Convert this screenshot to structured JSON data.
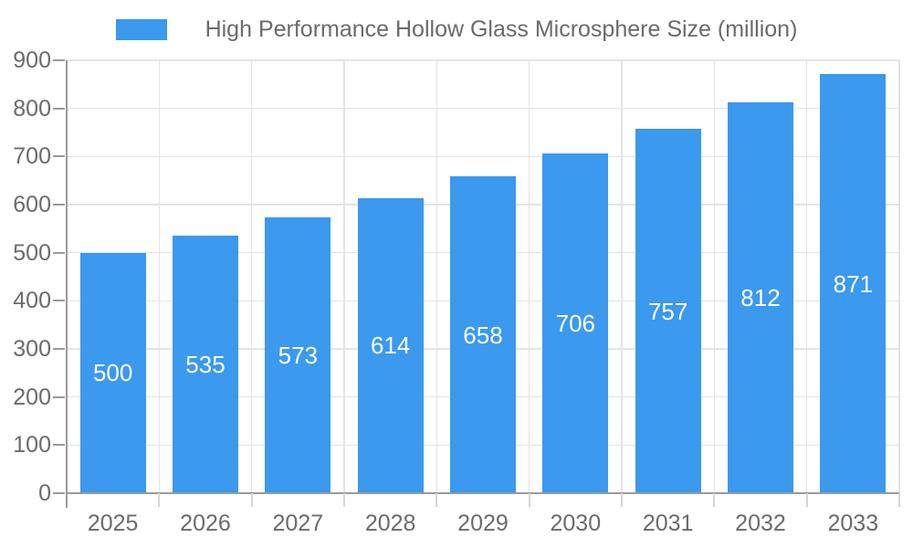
{
  "chart_data": {
    "type": "bar",
    "title": "High Performance Hollow Glass Microsphere Size (million)",
    "legend": [
      "High Performance Hollow Glass Microsphere Size (million)"
    ],
    "legend_position": "top-center",
    "categories": [
      "2025",
      "2026",
      "2027",
      "2028",
      "2029",
      "2030",
      "2031",
      "2032",
      "2033"
    ],
    "series": [
      {
        "name": "High Performance Hollow Glass Microsphere Size (million)",
        "values": [
          500,
          535,
          573,
          614,
          658,
          706,
          757,
          812,
          871
        ]
      }
    ],
    "xlabel": "",
    "ylabel": "",
    "ylim": [
      0,
      900
    ],
    "ytick_step": 100,
    "ytick_labels": [
      "0",
      "100",
      "200",
      "300",
      "400",
      "500",
      "600",
      "700",
      "800",
      "900"
    ],
    "grid": true,
    "value_label_position": "inside-middle",
    "bar_color": "#3b99ee",
    "value_label_color": "#ffffff"
  },
  "style": {
    "background": "#ffffff",
    "grid_color": "#e4e4e4",
    "axis_color": "#9a9a9a",
    "y_tick_color": "#9a9a9a",
    "x_tick_color": "#d6d6d6",
    "label_color": "#6b6b6b"
  }
}
